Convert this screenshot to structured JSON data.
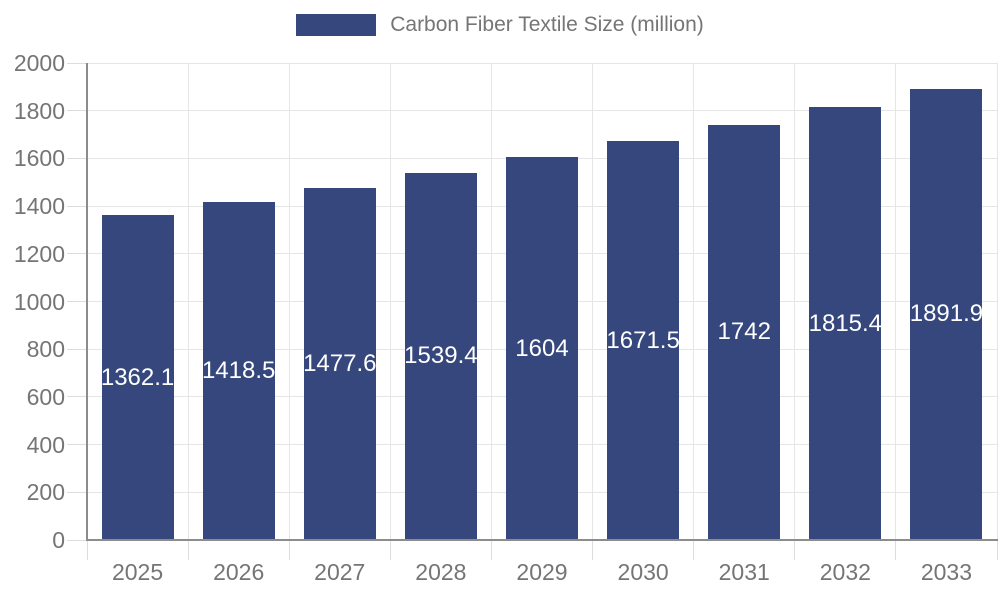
{
  "colors": {
    "background": "#ffffff",
    "bar": "#35477d",
    "bar_label_text": "#ffffff",
    "axis_line": "#8c8c8c",
    "gridline": "#e6e6e6",
    "tick": "#dddddd",
    "axis_label_text": "#757575",
    "legend_text": "#757575"
  },
  "legend": {
    "position": "top-center",
    "items": [
      {
        "label": "Carbon Fiber Textile Size (million)",
        "swatch_color": "#35477d"
      }
    ]
  },
  "chart_data": {
    "type": "bar",
    "title": "Carbon Fiber Textile Size (million)",
    "categories": [
      "2025",
      "2026",
      "2027",
      "2028",
      "2029",
      "2030",
      "2031",
      "2032",
      "2033"
    ],
    "series": [
      {
        "name": "Carbon Fiber Textile Size (million)",
        "values": [
          1362.1,
          1418.5,
          1477.6,
          1539.4,
          1604,
          1671.5,
          1742,
          1815.4,
          1891.9
        ]
      }
    ],
    "value_labels": [
      "1362.1",
      "1418.5",
      "1477.6",
      "1539.4",
      "1604",
      "1671.5",
      "1742",
      "1815.4",
      "1891.9"
    ],
    "value_label_position": "inside-middle",
    "xlabel": "",
    "ylabel": "",
    "ylim": [
      0,
      2000
    ],
    "y_ticks": [
      0,
      200,
      400,
      600,
      800,
      1000,
      1200,
      1400,
      1600,
      1800,
      2000
    ],
    "grid": "horizontal-and-vertical",
    "legend_position": "top"
  }
}
